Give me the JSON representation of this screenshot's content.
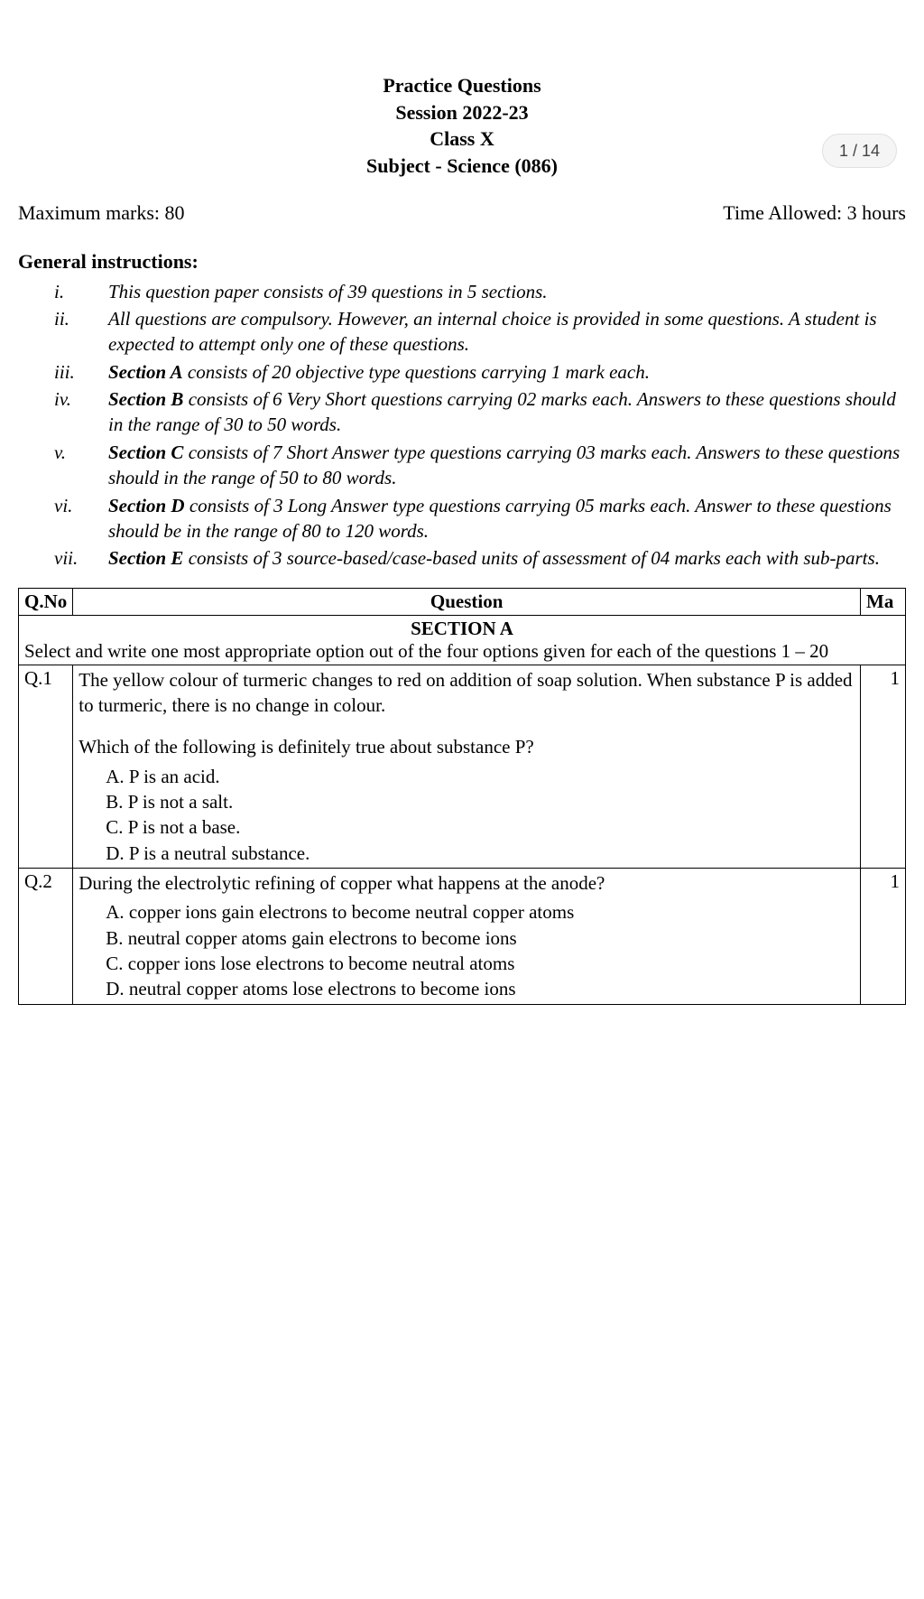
{
  "header": {
    "line1": "Practice Questions",
    "line2": "Session 2022-23",
    "line3": "Class X",
    "line4": "Subject - Science (086)"
  },
  "page_badge": "1 / 14",
  "meta": {
    "max_marks": "Maximum marks: 80",
    "time": "Time Allowed: 3 hours"
  },
  "instructions_title": "General instructions:",
  "instructions": [
    {
      "num": "i.",
      "html": "This question paper consists of 39 questions in 5 sections."
    },
    {
      "num": "ii.",
      "html": "All questions are compulsory. However, an internal choice is provided in some questions. A student is expected to attempt only one of these questions."
    },
    {
      "num": "iii.",
      "html": "<b>Section A</b> consists of 20 objective type questions carrying 1 mark each."
    },
    {
      "num": "iv.",
      "html": "<b>Section B</b> consists of 6 Very Short questions carrying 02 marks each. Answers to these questions should in the range of 30 to 50 words."
    },
    {
      "num": "v.",
      "html": "<b>Section C</b> consists of 7 Short Answer type questions carrying 03 marks each. Answers to these questions should in the range of 50 to 80 words."
    },
    {
      "num": "vi.",
      "html": "<b>Section D</b> consists of 3 Long Answer type questions carrying 05 marks each. Answer to these questions should be in the range of 80 to 120 words."
    },
    {
      "num": "vii.",
      "html": "<b>Section E</b> consists of 3 source-based/case-based units of assessment of 04 marks each with sub-parts."
    }
  ],
  "table": {
    "headers": {
      "qno": "Q.No",
      "question": "Question",
      "marks": "Ma"
    },
    "section": {
      "title": "SECTION A",
      "sub": "Select and write one most appropriate option out of the four options given for each of the questions 1 – 20"
    },
    "rows": [
      {
        "qno": "Q.1",
        "marks": "1",
        "stem": "The yellow colour of turmeric changes to red on addition of soap solution. When substance P is added to turmeric, there is no change in colour.",
        "sub": "Which of the following is definitely true about substance P?",
        "options": [
          "A.  P is an acid.",
          "B.  P is not a salt.",
          "C.  P is not a base.",
          "D.  P is a neutral substance."
        ]
      },
      {
        "qno": "Q.2",
        "marks": "1",
        "stem": "During the electrolytic refining of copper what happens at the anode?",
        "sub": "",
        "options": [
          "A.  copper ions gain electrons to become neutral copper atoms",
          "B.  neutral copper atoms gain electrons to become ions",
          "C.  copper ions lose electrons to become neutral atoms",
          "D.  neutral copper atoms lose electrons to become ions"
        ]
      }
    ]
  }
}
